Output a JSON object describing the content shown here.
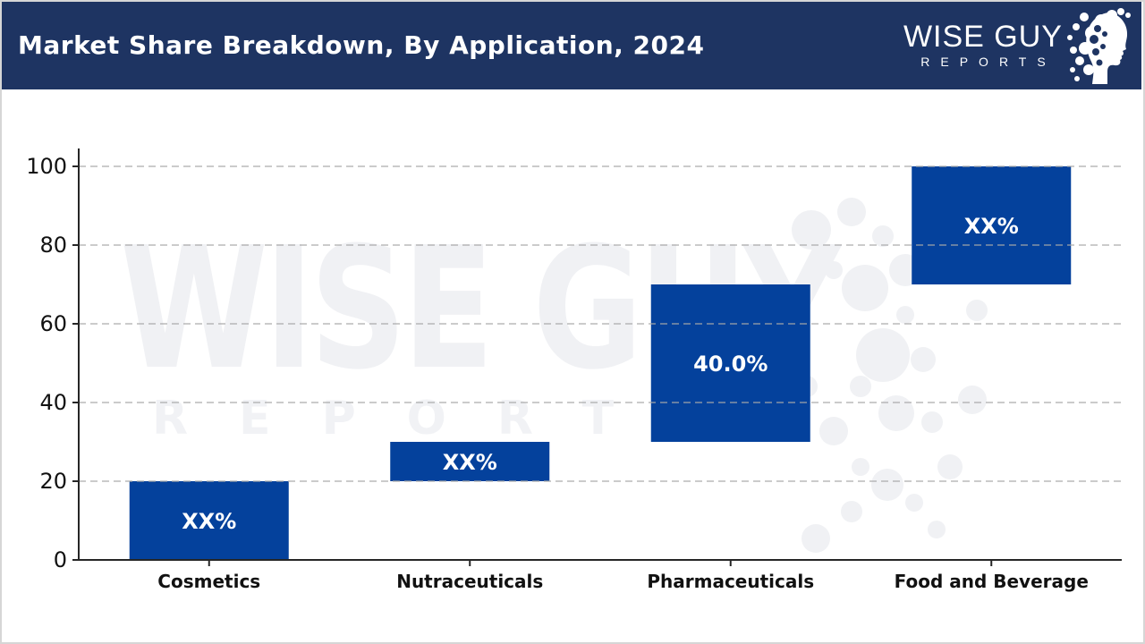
{
  "header": {
    "title": "Market Share Breakdown, By Application, 2024",
    "logo_line1": "WISE GUY",
    "logo_line2": "REPORTS"
  },
  "watermark": {
    "line1": "WISE GUY",
    "line2": "REPORTS"
  },
  "colors": {
    "header_bg": "#1e3462",
    "bar_fill": "#04419c",
    "axis": "#262626",
    "grid_dash": "rgba(168,168,168,0.6)",
    "tick_label": "#111111",
    "category_label": "#111111",
    "bar_label": "#ffffff",
    "watermark": "#f0f1f4",
    "page_border": "#d6d6d6",
    "background": "#ffffff"
  },
  "chart_data": {
    "type": "bar",
    "subtype": "floating-waterfall",
    "title": "Market Share Breakdown, By Application, 2024",
    "categories": [
      "Cosmetics",
      "Nutraceuticals",
      "Pharmaceuticals",
      "Food and Beverage"
    ],
    "segments": [
      {
        "category": "Cosmetics",
        "from": 0,
        "to": 20,
        "label": "XX%"
      },
      {
        "category": "Nutraceuticals",
        "from": 20,
        "to": 30,
        "label": "XX%"
      },
      {
        "category": "Pharmaceuticals",
        "from": 30,
        "to": 70,
        "label": "40.0%"
      },
      {
        "category": "Food and Beverage",
        "from": 70,
        "to": 100,
        "label": "XX%"
      }
    ],
    "values": [
      20,
      10,
      40,
      30
    ],
    "bar_labels": [
      "XX%",
      "XX%",
      "40.0%",
      "XX%"
    ],
    "yticks": [
      0,
      20,
      40,
      60,
      80,
      100
    ],
    "ylim": [
      0,
      100
    ],
    "xlabel": "",
    "ylabel": "",
    "grid": {
      "horizontal": true,
      "style": "dashed",
      "above_bars": true
    },
    "legend": "none"
  }
}
